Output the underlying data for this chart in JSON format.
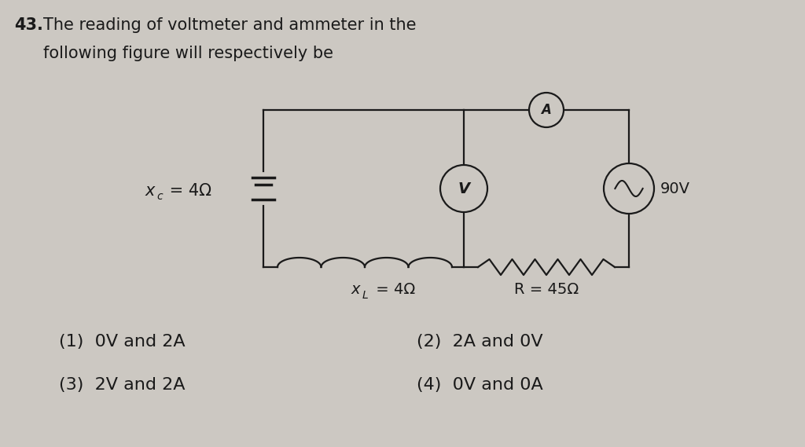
{
  "bg_color": "#ccc8c2",
  "text_color": "#1a1a1a",
  "title_num": "43.",
  "title_rest": "  The reading of voltmeter and ammeter in the",
  "title_line2": "       following figure will respectively be",
  "options": [
    "(1)  0V and 2A",
    "(3)  2V and 2A"
  ],
  "options_right": [
    "(2)  2A and 0V",
    "(4)  0V and 0A"
  ],
  "xc_val": "x",
  "xc_sub": "c",
  "xc_eq": " = 4Ω",
  "xl_val": "x",
  "xl_sub": "L",
  "xl_eq": " = 4Ω",
  "R_label": "R = 45Ω",
  "source_label": "90V",
  "lw": 1.6
}
